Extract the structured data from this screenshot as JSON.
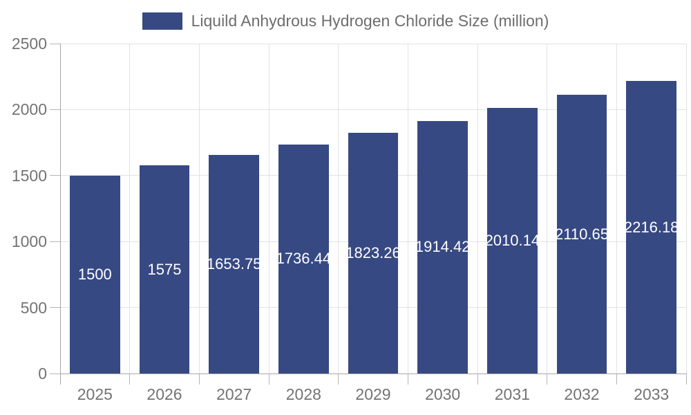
{
  "legend": {
    "label": "Liquild Anhydrous Hydrogen Chloride Size (million)"
  },
  "chart_data": {
    "type": "bar",
    "title": "Liquild Anhydrous Hydrogen Chloride Size (million)",
    "categories": [
      "2025",
      "2026",
      "2027",
      "2028",
      "2029",
      "2030",
      "2031",
      "2032",
      "2033"
    ],
    "values": [
      1500,
      1575,
      1653.75,
      1736.44,
      1823.26,
      1914.42,
      2010.14,
      2110.65,
      2216.18
    ],
    "value_labels": [
      "1500",
      "1575",
      "1653.75",
      "1736.44",
      "1823.26",
      "1914.42",
      "2010.14",
      "2110.65",
      "2216.18"
    ],
    "xlabel": "",
    "ylabel": "",
    "ylim": [
      0,
      2500
    ],
    "yticks": [
      0,
      500,
      1000,
      1500,
      2000,
      2500
    ],
    "grid": true,
    "legend_position": "top-center",
    "colors": {
      "bar": "#374983",
      "grid": "#e2e2e2",
      "axis": "#a6a6a6",
      "tick": "#b5b5b5",
      "axis_label": "#737373",
      "value_label": "#ffffff",
      "legend_text": "#6d6d6d",
      "background": "#ffffff"
    }
  }
}
